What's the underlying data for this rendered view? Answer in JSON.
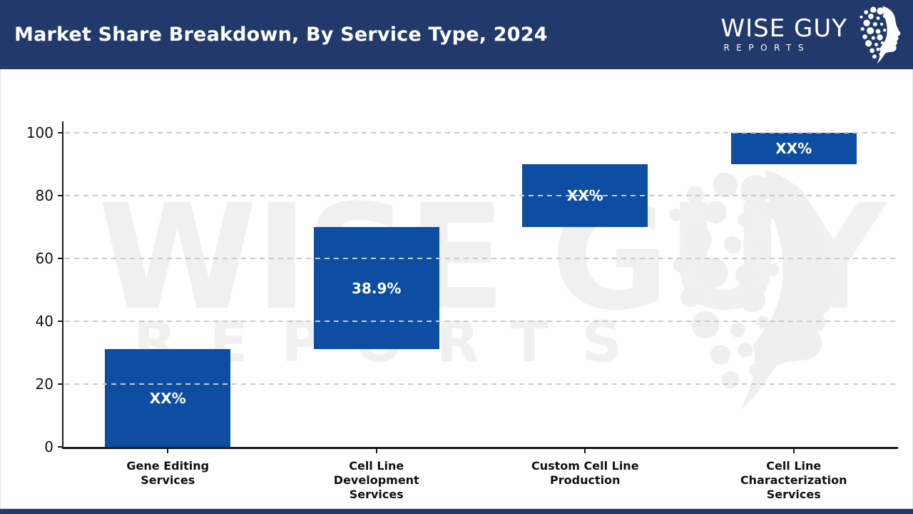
{
  "header": {
    "title": "Market Share Breakdown, By Service Type, 2024",
    "logo_text": "WISE GUY",
    "logo_subtext": "REPORTS"
  },
  "watermark": {
    "line1": "WISE GUY",
    "line2": "REPORTS"
  },
  "colors": {
    "header-bg": "#213a6b",
    "footer-bg": "#213a6b",
    "title-text": "#ffffff",
    "bar": "#0d4da2",
    "bar-label": "#ffffff",
    "grid": "#c9c9c9",
    "axis": "#1a1a1a",
    "watermark": "#f0f0f0"
  },
  "chart_data": {
    "type": "bar",
    "subtype": "waterfall-floating-bars",
    "title": "Market Share Breakdown, By Service Type, 2024",
    "xlabel": "",
    "ylabel": "",
    "ylim": [
      0,
      100
    ],
    "yticks": [
      0,
      20,
      40,
      60,
      80,
      100
    ],
    "grid": "horizontal-dashed-over-bars",
    "legend": "none",
    "categories": [
      "Gene Editing Services",
      "Cell Line Development Services",
      "Custom Cell Line Production",
      "Cell Line Characterization Services"
    ],
    "category_lines": [
      [
        "Gene Editing",
        "Services"
      ],
      [
        "Cell Line",
        "Development",
        "Services"
      ],
      [
        "Custom Cell Line",
        "Production"
      ],
      [
        "Cell Line",
        "Characterization",
        "Services"
      ]
    ],
    "bars": [
      {
        "category": "Gene Editing Services",
        "start": 0,
        "end": 31.1,
        "label": "XX%"
      },
      {
        "category": "Cell Line Development Services",
        "start": 31.1,
        "end": 70,
        "label": "38.9%"
      },
      {
        "category": "Custom Cell Line Production",
        "start": 70,
        "end": 90,
        "label": "XX%"
      },
      {
        "category": "Cell Line Characterization Services",
        "start": 90,
        "end": 100,
        "label": "XX%"
      }
    ]
  }
}
